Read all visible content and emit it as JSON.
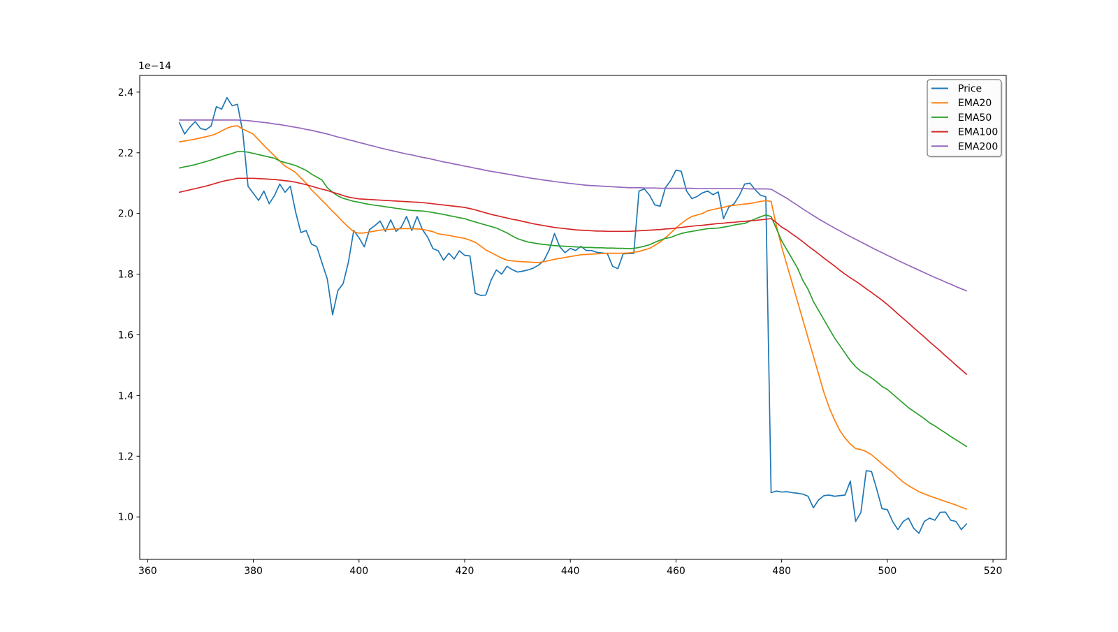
{
  "figure": {
    "background": "#ffffff",
    "spine_color": "#000000",
    "tick_color": "#000000"
  },
  "chart_data": {
    "type": "line",
    "title": "",
    "xlabel": "",
    "ylabel": "",
    "offset_label": "1e−14",
    "y_unit_multiplier": "1e-14",
    "grid": false,
    "xlim": [
      358.5,
      522.5
    ],
    "ylim": [
      0.86,
      2.455
    ],
    "xticks": [
      360,
      380,
      400,
      420,
      440,
      460,
      480,
      500,
      520
    ],
    "yticks": [
      1.0,
      1.2,
      1.4,
      1.6,
      1.8,
      2.0,
      2.2,
      2.4
    ],
    "legend": {
      "position": "upper right",
      "border_color": "#555555",
      "background": "#ffffff",
      "entries": [
        "Price",
        "EMA20",
        "EMA50",
        "EMA100",
        "EMA200"
      ]
    },
    "x": [
      366,
      367,
      368,
      369,
      370,
      371,
      372,
      373,
      374,
      375,
      376,
      377,
      378,
      379,
      380,
      381,
      382,
      383,
      384,
      385,
      386,
      387,
      388,
      389,
      390,
      391,
      392,
      393,
      394,
      395,
      396,
      397,
      398,
      399,
      400,
      401,
      402,
      403,
      404,
      405,
      406,
      407,
      408,
      409,
      410,
      411,
      412,
      413,
      414,
      415,
      416,
      417,
      418,
      419,
      420,
      421,
      422,
      423,
      424,
      425,
      426,
      427,
      428,
      429,
      430,
      431,
      432,
      433,
      434,
      435,
      436,
      437,
      438,
      439,
      440,
      441,
      442,
      443,
      444,
      445,
      446,
      447,
      448,
      449,
      450,
      451,
      452,
      453,
      454,
      455,
      456,
      457,
      458,
      459,
      460,
      461,
      462,
      463,
      464,
      465,
      466,
      467,
      468,
      469,
      470,
      471,
      472,
      473,
      474,
      475,
      476,
      477,
      478,
      479,
      480,
      481,
      482,
      483,
      484,
      485,
      486,
      487,
      488,
      489,
      490,
      491,
      492,
      493,
      494,
      495,
      496,
      497,
      498,
      499,
      500,
      501,
      502,
      503,
      504,
      505,
      506,
      507,
      508,
      509,
      510,
      511,
      512,
      513,
      514,
      515
    ],
    "series": [
      {
        "name": "Price",
        "color": "#1f77b4",
        "values": [
          2.299,
          2.262,
          2.285,
          2.303,
          2.28,
          2.276,
          2.288,
          2.352,
          2.344,
          2.382,
          2.355,
          2.36,
          2.268,
          2.09,
          2.066,
          2.043,
          2.074,
          2.032,
          2.059,
          2.097,
          2.07,
          2.09,
          2.005,
          1.937,
          1.944,
          1.899,
          1.891,
          1.837,
          1.784,
          1.666,
          1.746,
          1.769,
          1.84,
          1.944,
          1.92,
          1.89,
          1.947,
          1.96,
          1.975,
          1.941,
          1.979,
          1.941,
          1.955,
          1.99,
          1.944,
          1.99,
          1.947,
          1.922,
          1.884,
          1.877,
          1.846,
          1.869,
          1.85,
          1.877,
          1.862,
          1.86,
          1.737,
          1.73,
          1.731,
          1.78,
          1.814,
          1.8,
          1.826,
          1.815,
          1.807,
          1.81,
          1.814,
          1.82,
          1.83,
          1.845,
          1.88,
          1.934,
          1.89,
          1.871,
          1.885,
          1.878,
          1.892,
          1.878,
          1.878,
          1.872,
          1.87,
          1.868,
          1.826,
          1.818,
          1.867,
          1.868,
          1.868,
          2.074,
          2.081,
          2.06,
          2.028,
          2.024,
          2.085,
          2.109,
          2.143,
          2.139,
          2.074,
          2.049,
          2.056,
          2.068,
          2.074,
          2.062,
          2.071,
          1.983,
          2.021,
          2.032,
          2.06,
          2.097,
          2.1,
          2.078,
          2.06,
          2.055,
          1.08,
          1.085,
          1.082,
          1.083,
          1.08,
          1.078,
          1.075,
          1.068,
          1.03,
          1.056,
          1.07,
          1.072,
          1.068,
          1.07,
          1.072,
          1.118,
          0.985,
          1.015,
          1.152,
          1.15,
          1.091,
          1.027,
          1.024,
          0.985,
          0.958,
          0.985,
          0.996,
          0.962,
          0.946,
          0.985,
          0.996,
          0.989,
          1.015,
          1.016,
          0.989,
          0.985,
          0.958,
          0.977
        ]
      },
      {
        "name": "EMA20",
        "color": "#ff7f0e",
        "values": [
          2.236,
          2.239,
          2.242,
          2.245,
          2.249,
          2.253,
          2.257,
          2.263,
          2.272,
          2.281,
          2.287,
          2.289,
          2.278,
          2.27,
          2.261,
          2.243,
          2.224,
          2.207,
          2.19,
          2.173,
          2.156,
          2.146,
          2.135,
          2.117,
          2.1,
          2.078,
          2.061,
          2.043,
          2.026,
          2.007,
          1.99,
          1.972,
          1.955,
          1.94,
          1.935,
          1.936,
          1.939,
          1.942,
          1.945,
          1.947,
          1.948,
          1.949,
          1.95,
          1.95,
          1.95,
          1.949,
          1.948,
          1.944,
          1.94,
          1.933,
          1.93,
          1.928,
          1.924,
          1.921,
          1.918,
          1.912,
          1.905,
          1.893,
          1.88,
          1.871,
          1.862,
          1.853,
          1.846,
          1.844,
          1.842,
          1.841,
          1.84,
          1.839,
          1.838,
          1.841,
          1.845,
          1.849,
          1.852,
          1.855,
          1.858,
          1.861,
          1.864,
          1.865,
          1.866,
          1.867,
          1.868,
          1.869,
          1.869,
          1.869,
          1.869,
          1.87,
          1.872,
          1.875,
          1.88,
          1.885,
          1.895,
          1.906,
          1.92,
          1.936,
          1.952,
          1.967,
          1.98,
          1.99,
          1.995,
          2.0,
          2.009,
          2.013,
          2.017,
          2.02,
          2.025,
          2.027,
          2.029,
          2.031,
          2.033,
          2.036,
          2.04,
          2.042,
          2.04,
          1.96,
          1.89,
          1.83,
          1.77,
          1.71,
          1.65,
          1.59,
          1.53,
          1.47,
          1.41,
          1.36,
          1.32,
          1.285,
          1.26,
          1.24,
          1.225,
          1.222,
          1.215,
          1.205,
          1.19,
          1.175,
          1.16,
          1.147,
          1.13,
          1.115,
          1.103,
          1.093,
          1.083,
          1.076,
          1.069,
          1.063,
          1.057,
          1.051,
          1.045,
          1.039,
          1.032,
          1.026
        ]
      },
      {
        "name": "EMA50",
        "color": "#2ca02c",
        "values": [
          2.15,
          2.154,
          2.157,
          2.161,
          2.166,
          2.171,
          2.176,
          2.182,
          2.188,
          2.193,
          2.198,
          2.204,
          2.204,
          2.202,
          2.198,
          2.194,
          2.19,
          2.186,
          2.182,
          2.173,
          2.168,
          2.163,
          2.158,
          2.15,
          2.142,
          2.13,
          2.12,
          2.11,
          2.085,
          2.07,
          2.058,
          2.05,
          2.045,
          2.04,
          2.037,
          2.033,
          2.03,
          2.027,
          2.025,
          2.022,
          2.02,
          2.017,
          2.015,
          2.012,
          2.01,
          2.009,
          2.008,
          2.006,
          2.003,
          2.0,
          1.997,
          1.993,
          1.99,
          1.986,
          1.983,
          1.977,
          1.972,
          1.967,
          1.962,
          1.957,
          1.952,
          1.944,
          1.936,
          1.926,
          1.917,
          1.911,
          1.906,
          1.903,
          1.9,
          1.898,
          1.896,
          1.894,
          1.893,
          1.892,
          1.891,
          1.89,
          1.889,
          1.888,
          1.888,
          1.887,
          1.887,
          1.886,
          1.886,
          1.885,
          1.885,
          1.884,
          1.885,
          1.888,
          1.892,
          1.897,
          1.905,
          1.912,
          1.918,
          1.921,
          1.928,
          1.934,
          1.938,
          1.941,
          1.944,
          1.947,
          1.95,
          1.951,
          1.952,
          1.955,
          1.958,
          1.962,
          1.965,
          1.967,
          1.975,
          1.982,
          1.989,
          1.995,
          1.99,
          1.95,
          1.91,
          1.88,
          1.85,
          1.82,
          1.78,
          1.75,
          1.71,
          1.68,
          1.65,
          1.62,
          1.59,
          1.565,
          1.54,
          1.515,
          1.495,
          1.48,
          1.47,
          1.458,
          1.445,
          1.43,
          1.42,
          1.405,
          1.39,
          1.375,
          1.36,
          1.348,
          1.336,
          1.324,
          1.31,
          1.3,
          1.288,
          1.277,
          1.265,
          1.254,
          1.243,
          1.232
        ]
      },
      {
        "name": "EMA100",
        "color": "#d62728",
        "values": [
          2.07,
          2.074,
          2.078,
          2.082,
          2.086,
          2.09,
          2.095,
          2.1,
          2.105,
          2.109,
          2.112,
          2.116,
          2.116,
          2.116,
          2.116,
          2.115,
          2.114,
          2.113,
          2.112,
          2.11,
          2.108,
          2.106,
          2.103,
          2.099,
          2.095,
          2.09,
          2.085,
          2.08,
          2.076,
          2.07,
          2.065,
          2.059,
          2.054,
          2.051,
          2.048,
          2.047,
          2.046,
          2.045,
          2.044,
          2.043,
          2.042,
          2.041,
          2.04,
          2.039,
          2.038,
          2.037,
          2.036,
          2.034,
          2.032,
          2.03,
          2.028,
          2.026,
          2.024,
          2.022,
          2.02,
          2.016,
          2.012,
          2.007,
          2.002,
          1.997,
          1.993,
          1.989,
          1.985,
          1.981,
          1.978,
          1.974,
          1.97,
          1.966,
          1.963,
          1.96,
          1.957,
          1.954,
          1.952,
          1.95,
          1.948,
          1.946,
          1.945,
          1.944,
          1.943,
          1.942,
          1.942,
          1.941,
          1.941,
          1.941,
          1.941,
          1.941,
          1.942,
          1.943,
          1.944,
          1.945,
          1.946,
          1.947,
          1.949,
          1.95,
          1.952,
          1.954,
          1.956,
          1.958,
          1.96,
          1.961,
          1.963,
          1.965,
          1.967,
          1.968,
          1.97,
          1.971,
          1.973,
          1.974,
          1.976,
          1.977,
          1.979,
          1.981,
          1.983,
          1.97,
          1.955,
          1.945,
          1.932,
          1.92,
          1.907,
          1.893,
          1.88,
          1.867,
          1.853,
          1.84,
          1.827,
          1.813,
          1.8,
          1.788,
          1.777,
          1.765,
          1.752,
          1.74,
          1.727,
          1.714,
          1.7,
          1.685,
          1.669,
          1.654,
          1.639,
          1.623,
          1.608,
          1.593,
          1.577,
          1.562,
          1.547,
          1.531,
          1.516,
          1.5,
          1.485,
          1.47
        ]
      },
      {
        "name": "EMA200",
        "color": "#9467bd",
        "values": [
          2.308,
          2.308,
          2.308,
          2.308,
          2.308,
          2.308,
          2.308,
          2.308,
          2.308,
          2.308,
          2.308,
          2.308,
          2.307,
          2.306,
          2.304,
          2.302,
          2.3,
          2.298,
          2.295,
          2.293,
          2.29,
          2.287,
          2.284,
          2.281,
          2.277,
          2.274,
          2.27,
          2.266,
          2.262,
          2.257,
          2.252,
          2.248,
          2.243,
          2.239,
          2.234,
          2.23,
          2.225,
          2.221,
          2.216,
          2.212,
          2.208,
          2.204,
          2.2,
          2.196,
          2.193,
          2.189,
          2.185,
          2.182,
          2.178,
          2.174,
          2.17,
          2.167,
          2.163,
          2.16,
          2.156,
          2.153,
          2.149,
          2.146,
          2.142,
          2.139,
          2.136,
          2.133,
          2.13,
          2.127,
          2.124,
          2.121,
          2.118,
          2.115,
          2.113,
          2.11,
          2.108,
          2.105,
          2.103,
          2.101,
          2.099,
          2.097,
          2.095,
          2.093,
          2.092,
          2.091,
          2.09,
          2.089,
          2.088,
          2.087,
          2.086,
          2.085,
          2.085,
          2.085,
          2.084,
          2.084,
          2.084,
          2.083,
          2.083,
          2.083,
          2.083,
          2.083,
          2.083,
          2.083,
          2.082,
          2.082,
          2.082,
          2.082,
          2.082,
          2.082,
          2.082,
          2.082,
          2.082,
          2.082,
          2.081,
          2.081,
          2.081,
          2.081,
          2.08,
          2.07,
          2.06,
          2.05,
          2.038,
          2.027,
          2.015,
          2.004,
          1.993,
          1.982,
          1.972,
          1.962,
          1.952,
          1.943,
          1.933,
          1.924,
          1.915,
          1.906,
          1.897,
          1.888,
          1.879,
          1.871,
          1.862,
          1.854,
          1.845,
          1.837,
          1.829,
          1.821,
          1.813,
          1.805,
          1.797,
          1.789,
          1.782,
          1.774,
          1.767,
          1.759,
          1.752,
          1.745
        ]
      }
    ]
  }
}
